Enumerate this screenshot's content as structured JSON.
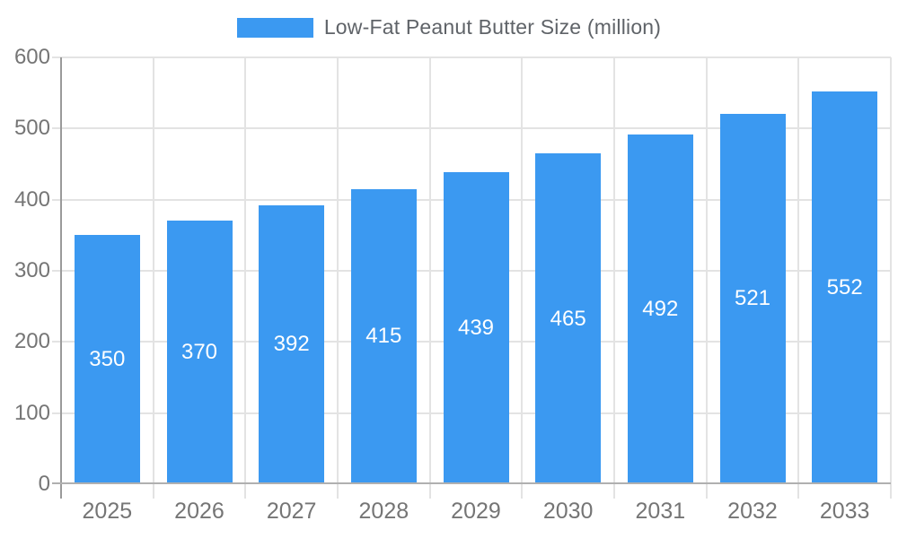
{
  "chart_data": {
    "type": "bar",
    "title": "Low-Fat Peanut Butter Size (million)",
    "categories": [
      "2025",
      "2026",
      "2027",
      "2028",
      "2029",
      "2030",
      "2031",
      "2032",
      "2033"
    ],
    "values": [
      350,
      370,
      392,
      415,
      439,
      465,
      492,
      521,
      552
    ],
    "xlabel": "",
    "ylabel": "",
    "ylim": [
      0,
      600
    ],
    "yticks": [
      0,
      100,
      200,
      300,
      400,
      500,
      600
    ],
    "grid": true,
    "legend_position": "top-center",
    "colors": {
      "bar": "#3b99f1",
      "bar_value_text": "#ffffff",
      "gridline": "#e3e3e3",
      "y_axis_line": "#9a9a9a",
      "baseline": "#b0b0b0",
      "tick_label": "#757575",
      "legend_text": "#5f6368",
      "background": "#ffffff"
    }
  }
}
